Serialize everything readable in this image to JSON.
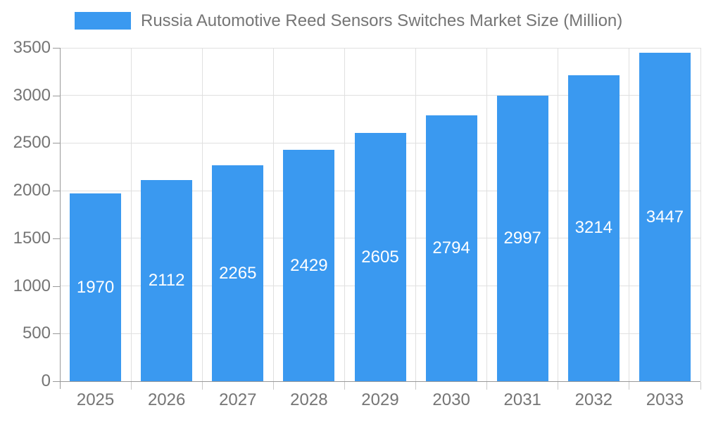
{
  "chart_data": {
    "type": "bar",
    "series_name": "Russia Automotive Reed Sensors Switches Market Size (Million)",
    "categories": [
      "2025",
      "2026",
      "2027",
      "2028",
      "2029",
      "2030",
      "2031",
      "2032",
      "2033"
    ],
    "values": [
      1970,
      2112,
      2265,
      2429,
      2605,
      2794,
      2997,
      3214,
      3447
    ],
    "ylim": [
      0,
      3500
    ],
    "yticks": [
      0,
      500,
      1000,
      1500,
      2000,
      2500,
      3000,
      3500
    ],
    "grid": true,
    "legend_position": "top",
    "bar_color": "#3A99F0",
    "bar_label_color": "#ffffff",
    "axis_color": "#999999",
    "grid_color": "#e0e0e0",
    "tick_label_color": "#757575"
  }
}
